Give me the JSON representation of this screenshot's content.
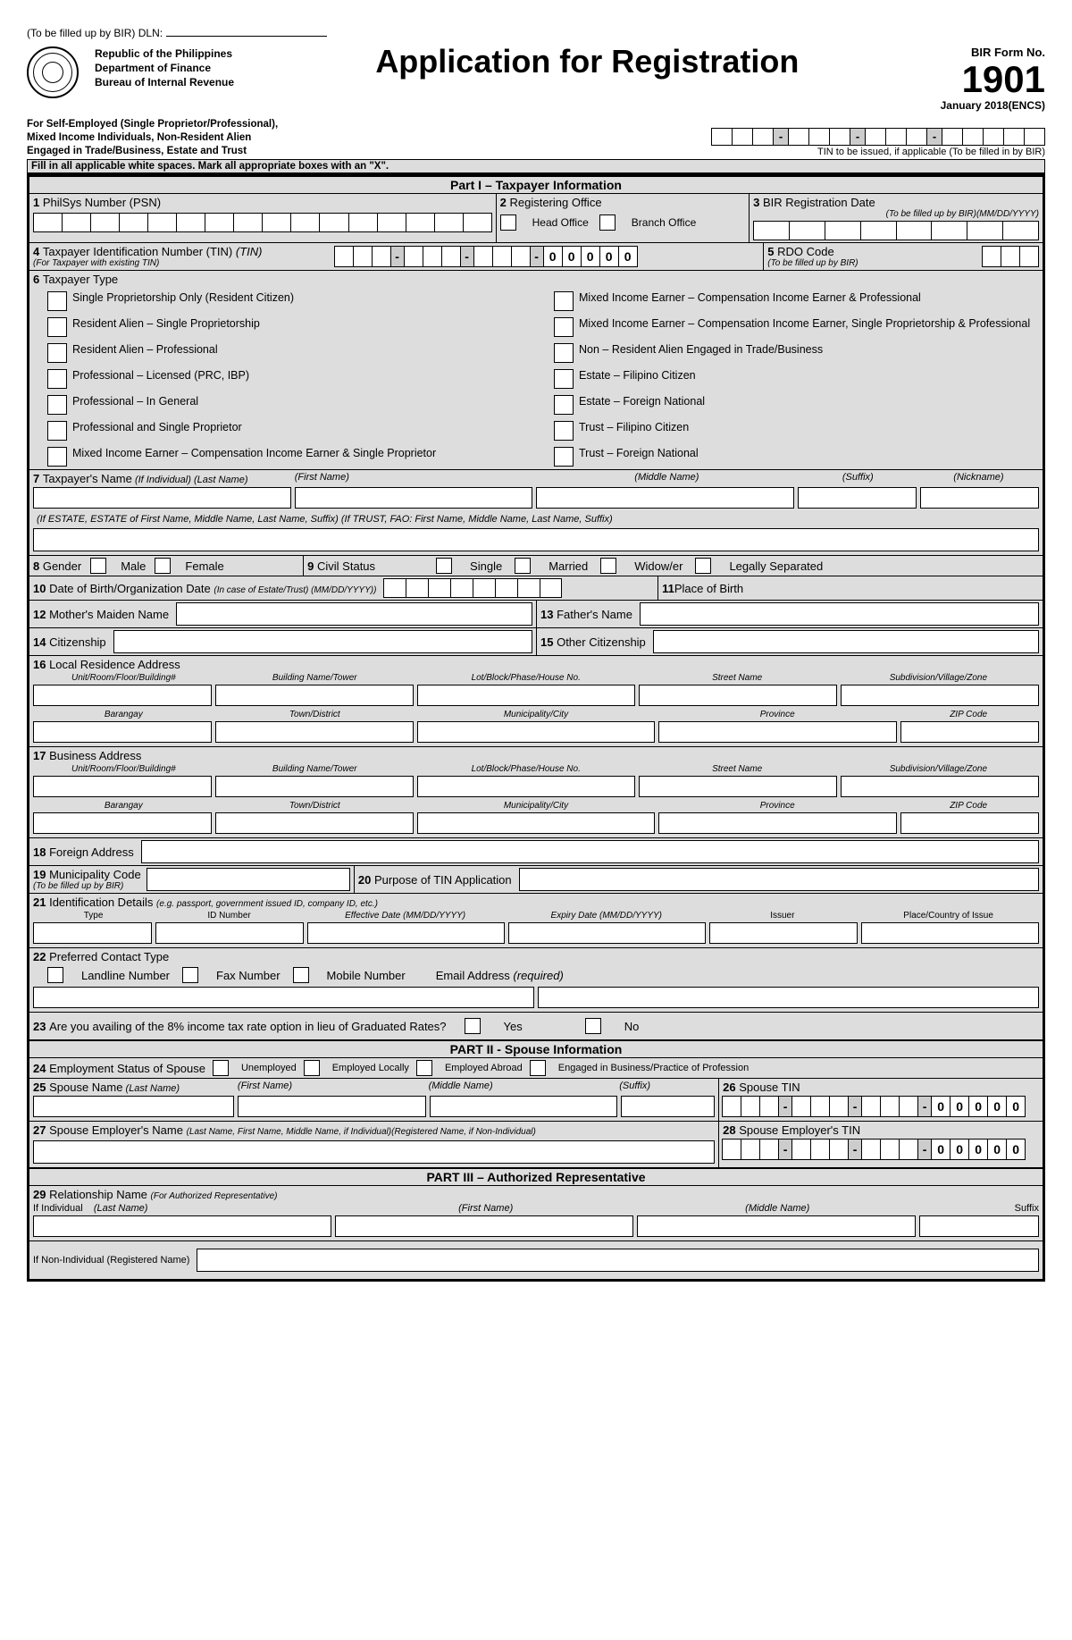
{
  "dln": "(To be filled up by BIR) DLN:",
  "agency": {
    "l1": "Republic of the Philippines",
    "l2": "Department of Finance",
    "l3": "Bureau of Internal Revenue"
  },
  "title": "Application for Registration",
  "formno_lbl": "BIR Form No.",
  "formno_num": "1901",
  "formno_date": "January 2018(ENCS)",
  "subhead": {
    "l1": "For Self-Employed (Single Proprietor/Professional),",
    "l2": "Mixed Income Individuals, Non-Resident Alien",
    "l3": "Engaged in Trade/Business, Estate and Trust"
  },
  "tincaption": "TIN to be issued, if applicable (To be filled in by BIR)",
  "fillnote": "Fill in all applicable white spaces. Mark all appropriate boxes with an \"X\".",
  "part1": "Part I – Taxpayer Information",
  "f1": "PhilSys Number (PSN)",
  "f2": "Registering Office",
  "f2a": "Head Office",
  "f2b": "Branch Office",
  "f3": "BIR Registration Date",
  "f3sub": "(To be filled up by BIR)(MM/DD/YYYY)",
  "f4": "Taxpayer Identification Number (TIN)",
  "f4sub": "(For Taxpayer with existing TIN)",
  "f5": "RDO Code",
  "f5sub": "(To be filled up by BIR)",
  "f6": "Taxpayer Type",
  "tp_left": [
    "Single Proprietorship Only (Resident Citizen)",
    "Resident Alien – Single Proprietorship",
    "Resident Alien – Professional",
    "Professional – Licensed (PRC, IBP)",
    "Professional – In General",
    "Professional and Single Proprietor",
    "Mixed Income Earner – Compensation Income Earner & Single Proprietor"
  ],
  "tp_right": [
    "Mixed Income Earner – Compensation Income Earner & Professional",
    "Mixed Income Earner – Compensation Income Earner, Single Proprietorship & Professional",
    "Non – Resident Alien Engaged in Trade/Business",
    "Estate – Filipino Citizen",
    "Estate – Foreign National",
    "Trust – Filipino Citizen",
    "Trust – Foreign National"
  ],
  "f7": "Taxpayer's Name",
  "f7a": "(If Individual) (Last Name)",
  "f7b": "(First Name)",
  "f7c": "(Middle Name)",
  "f7d": "(Suffix)",
  "f7e": "(Nickname)",
  "f7note": "(If ESTATE, ESTATE of First Name, Middle Name, Last Name, Suffix)     (If TRUST, FAO: First Name, Middle Name, Last Name, Suffix)",
  "f8": "Gender",
  "f8a": "Male",
  "f8b": "Female",
  "f9": "Civil Status",
  "f9a": "Single",
  "f9b": "Married",
  "f9c": "Widow/er",
  "f9d": "Legally Separated",
  "f10": "Date of Birth/Organization Date",
  "f10sub": "(In case of Estate/Trust) (MM/DD/YYYY))",
  "f11": "Place of Birth",
  "f12": "Mother's Maiden Name",
  "f13": "Father's Name",
  "f14": "Citizenship",
  "f15": "Other Citizenship",
  "f16": "Local Residence Address",
  "addr": {
    "a1": "Unit/Room/Floor/Building#",
    "a2": "Building Name/Tower",
    "a3": "Lot/Block/Phase/House No.",
    "a4": "Street  Name",
    "a5": "Subdivision/Village/Zone",
    "b1": "Barangay",
    "b2": "Town/District",
    "b3": "Municipality/City",
    "b4": "Province",
    "b5": "ZIP Code"
  },
  "f17": "Business Address",
  "f18": "Foreign Address",
  "f19": "Municipality Code",
  "f19sub": "(To be filled up by BIR)",
  "f20": "Purpose of TIN Application",
  "f21": "Identification Details",
  "f21sub": "(e.g. passport, government issued ID, company ID, etc.)",
  "f21c": {
    "c1": "Type",
    "c2": "ID Number",
    "c3": "Effective Date (MM/DD/YYYY)",
    "c4": "Expiry Date (MM/DD/YYYY)",
    "c5": "Issuer",
    "c6": "Place/Country of Issue"
  },
  "f22": "Preferred Contact Type",
  "f22a": "Landline Number",
  "f22b": "Fax Number",
  "f22c": "Mobile Number",
  "f22d": "Email Address",
  "f22e": "(required)",
  "f23": "Are you availing of the 8% income tax rate option in lieu of Graduated Rates?",
  "yes": "Yes",
  "no": "No",
  "part2": "PART II - Spouse Information",
  "f24": "Employment Status of Spouse",
  "f24a": "Unemployed",
  "f24b": "Employed Locally",
  "f24c": "Employed Abroad",
  "f24d": "Engaged in Business/Practice of Profession",
  "f25": "Spouse Name",
  "f25a": "(Last Name)",
  "f25b": "(First Name)",
  "f25c": "(Middle Name)",
  "f25d": "(Suffix)",
  "f26": "Spouse TIN",
  "f27": "Spouse Employer's Name",
  "f27sub": "(Last Name, First Name, Middle Name, if Individual)(Registered Name, if Non-Individual)",
  "f28": "Spouse Employer's TIN",
  "part3": "PART III – Authorized Representative",
  "f29": "Relationship Name",
  "f29sub": "(For Authorized Representative)",
  "f29a": "If Individual",
  "f29b": "(Last Name)",
  "f29c": "(First Name)",
  "f29d": "(Middle Name)",
  "f29e": "Suffix",
  "f29f": "If Non-Individual (Registered Name)",
  "zeros": "0 0 0 0 0"
}
